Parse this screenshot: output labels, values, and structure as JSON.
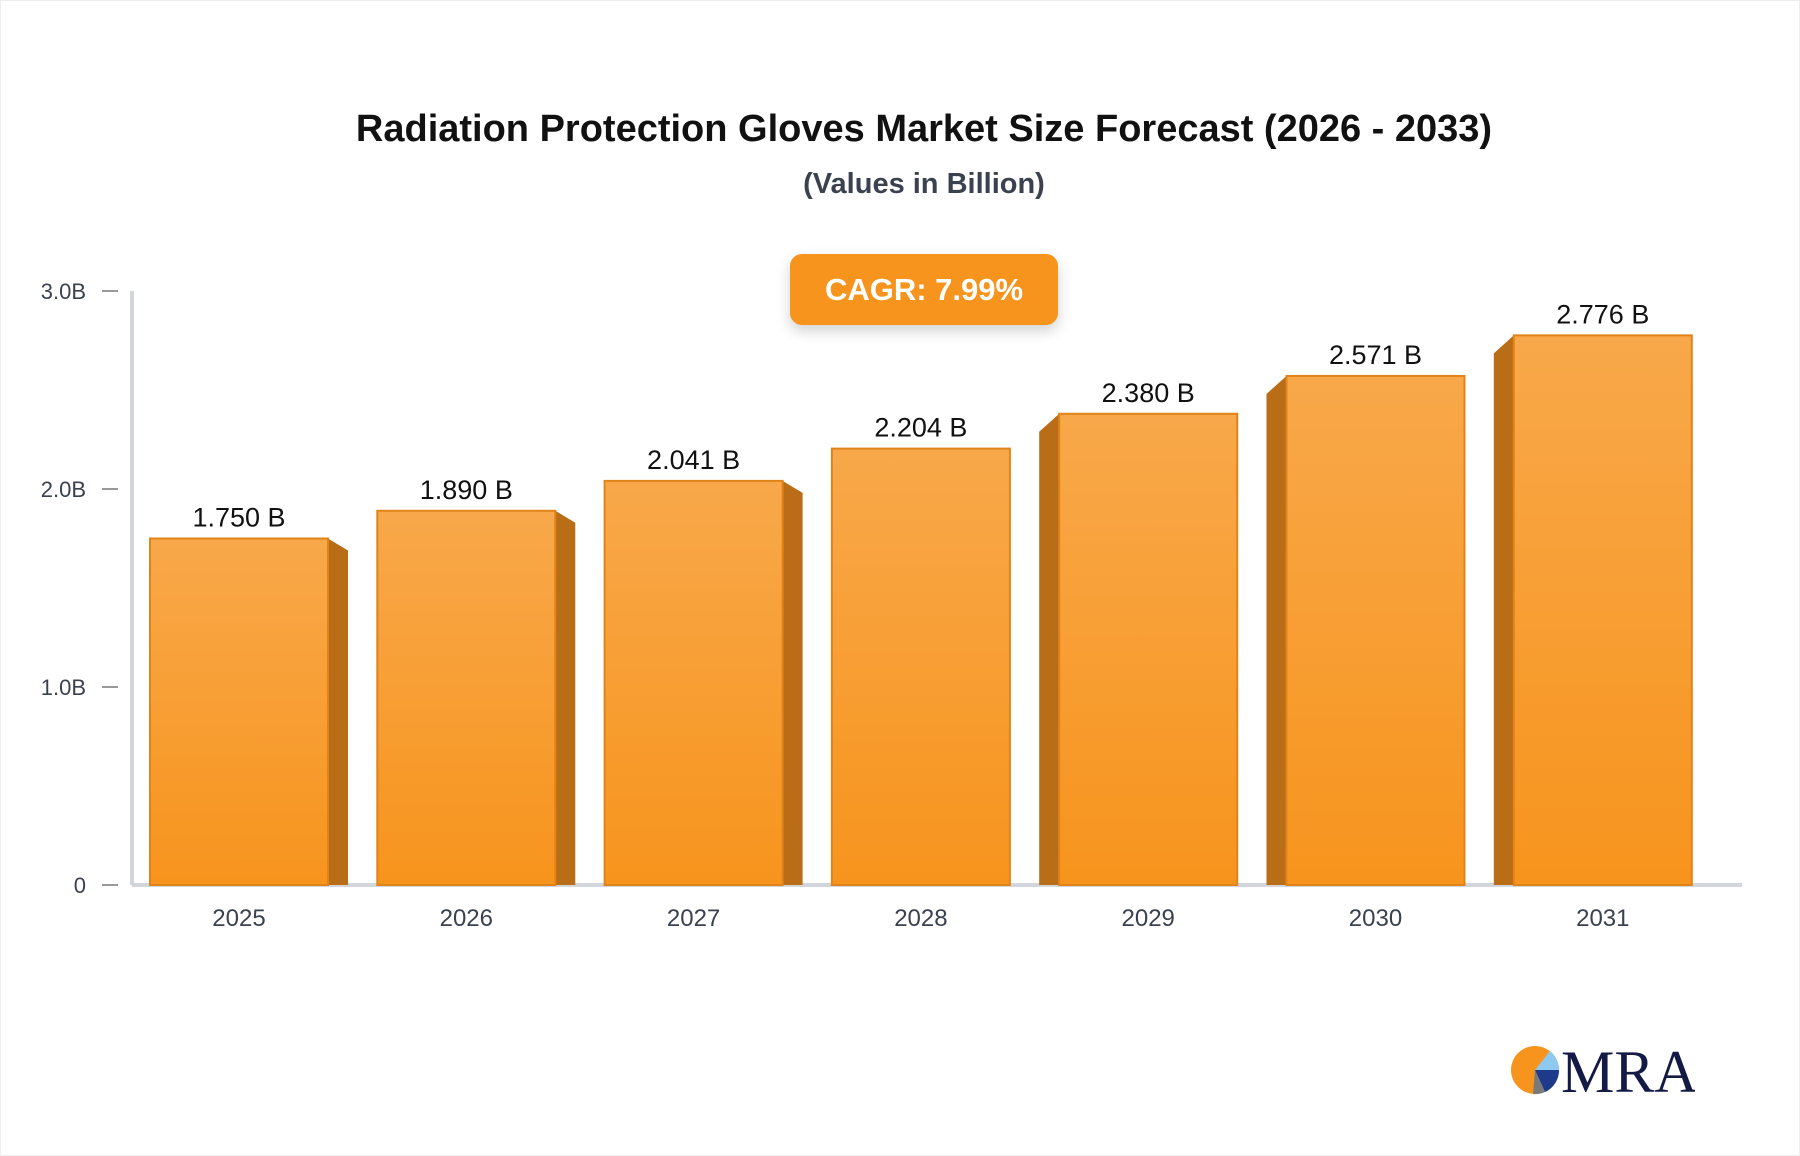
{
  "chart_data": {
    "type": "bar",
    "title": "Radiation Protection Gloves Market Size Forecast (2026 - 2033)",
    "subtitle": "(Values in Billion)",
    "annotation": "CAGR: 7.99%",
    "categories": [
      "2025",
      "2026",
      "2027",
      "2028",
      "2029",
      "2030",
      "2031"
    ],
    "values": [
      1.75,
      1.89,
      2.041,
      2.204,
      2.38,
      2.571,
      2.776
    ],
    "data_labels": [
      "1.750 B",
      "1.890 B",
      "2.041 B",
      "2.204 B",
      "2.380 B",
      "2.571 B",
      "2.776 B"
    ],
    "yticks": [
      0,
      1,
      2,
      3
    ],
    "ytick_labels": [
      "0",
      "1.0B",
      "2.0B",
      "3.0B"
    ],
    "ylim": [
      0,
      3
    ],
    "xlabel": "",
    "ylabel": "",
    "grid": false,
    "colors": {
      "bar_top": "#f8a84a",
      "bar_bottom": "#f7941d",
      "bar_side": "#b96d17",
      "accent": "#f7941d"
    }
  },
  "logo": {
    "text": "MRA"
  }
}
